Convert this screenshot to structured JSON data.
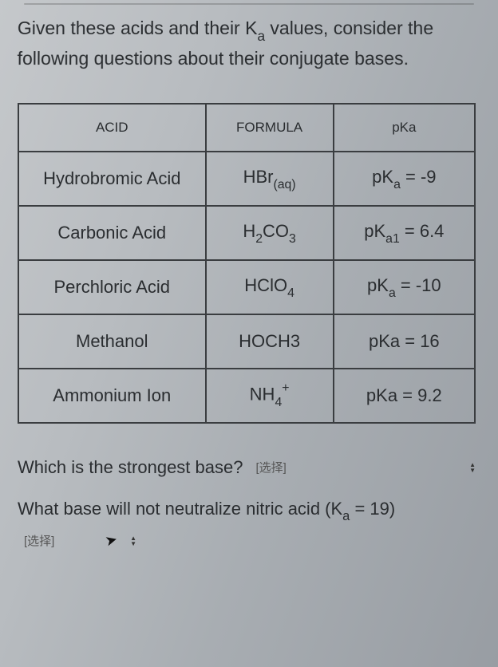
{
  "intro": {
    "prefix": "Given these acids and their K",
    "sub": "a",
    "mid": " values, consider the following questions about their conjugate bases."
  },
  "table": {
    "headers": {
      "acid": "ACID",
      "formula": "FORMULA",
      "pka": "pKa"
    },
    "rows": [
      {
        "acid": "Hydrobromic Acid",
        "formula": {
          "pre": "HBr",
          "sub": "(aq)",
          "post": ""
        },
        "pka": {
          "pre": "pK",
          "sub": "a",
          "post": " = -9"
        }
      },
      {
        "acid": "Carbonic Acid",
        "formula": {
          "pre": "H",
          "sub": "2",
          "mid": "CO",
          "sub2": "3",
          "post": ""
        },
        "pka": {
          "pre": "pK",
          "sub": "a1",
          "post": " = 6.4"
        }
      },
      {
        "acid": "Perchloric Acid",
        "formula": {
          "pre": "HClO",
          "sub": "4",
          "post": ""
        },
        "pka": {
          "pre": "pK",
          "sub": "a",
          "post": " = -10"
        }
      },
      {
        "acid": "Methanol",
        "formula": {
          "plain": "HOCH3"
        },
        "pka": {
          "plain": "pKa = 16"
        }
      },
      {
        "acid": "Ammonium Ion",
        "formula": {
          "pre": "NH",
          "sub": "4",
          "sup": "+",
          "post": ""
        },
        "pka": {
          "plain": "pKa = 9.2"
        }
      }
    ]
  },
  "q1": {
    "text": "Which is the strongest base?",
    "placeholder": "[选择]"
  },
  "q2": {
    "line1pre": "What base will not neutralize nitric acid (K",
    "line1sub": "a",
    "line1post": " = 19)",
    "placeholder": "[选择]"
  },
  "colors": {
    "text": "#2a2d30",
    "border": "#3a3d40"
  }
}
